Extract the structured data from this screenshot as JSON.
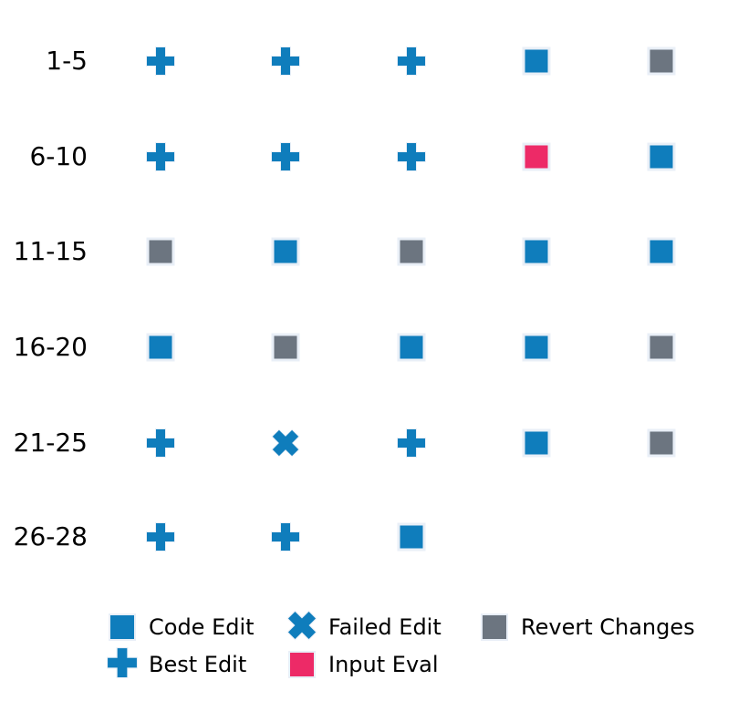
{
  "chart_data": {
    "type": "scatter",
    "title": "",
    "xlabel": "",
    "ylabel": "",
    "grid": false,
    "background": "#ffffff",
    "y_categories": [
      "1-5",
      "6-10",
      "11-15",
      "16-20",
      "21-25",
      "26-28"
    ],
    "rows": [
      {
        "label": "1-5",
        "markers": [
          "best_edit",
          "best_edit",
          "best_edit",
          "code_edit",
          "revert_changes"
        ]
      },
      {
        "label": "6-10",
        "markers": [
          "best_edit",
          "best_edit",
          "best_edit",
          "input_eval",
          "code_edit"
        ]
      },
      {
        "label": "11-15",
        "markers": [
          "revert_changes",
          "code_edit",
          "revert_changes",
          "code_edit",
          "code_edit"
        ]
      },
      {
        "label": "16-20",
        "markers": [
          "code_edit",
          "revert_changes",
          "code_edit",
          "code_edit",
          "revert_changes"
        ]
      },
      {
        "label": "21-25",
        "markers": [
          "best_edit",
          "failed_edit",
          "best_edit",
          "code_edit",
          "revert_changes"
        ]
      },
      {
        "label": "26-28",
        "markers": [
          "best_edit",
          "best_edit",
          "code_edit"
        ]
      }
    ],
    "marker_styles": {
      "code_edit": {
        "shape": "square",
        "color": "#0f7dbc"
      },
      "failed_edit": {
        "shape": "x",
        "color": "#0f7dbc"
      },
      "revert_changes": {
        "shape": "square",
        "color": "#6c7580"
      },
      "best_edit": {
        "shape": "plus",
        "color": "#0f7dbc"
      },
      "input_eval": {
        "shape": "square",
        "color": "#ed2a67"
      }
    },
    "marker_edge_color": "#e9eff7",
    "legend": {
      "position": "bottom",
      "rows": [
        [
          {
            "key": "code_edit",
            "label": "Code Edit"
          },
          {
            "key": "failed_edit",
            "label": "Failed Edit"
          },
          {
            "key": "revert_changes",
            "label": "Revert Changes"
          }
        ],
        [
          {
            "key": "best_edit",
            "label": "Best Edit"
          },
          {
            "key": "input_eval",
            "label": "Input Eval"
          }
        ]
      ]
    }
  }
}
